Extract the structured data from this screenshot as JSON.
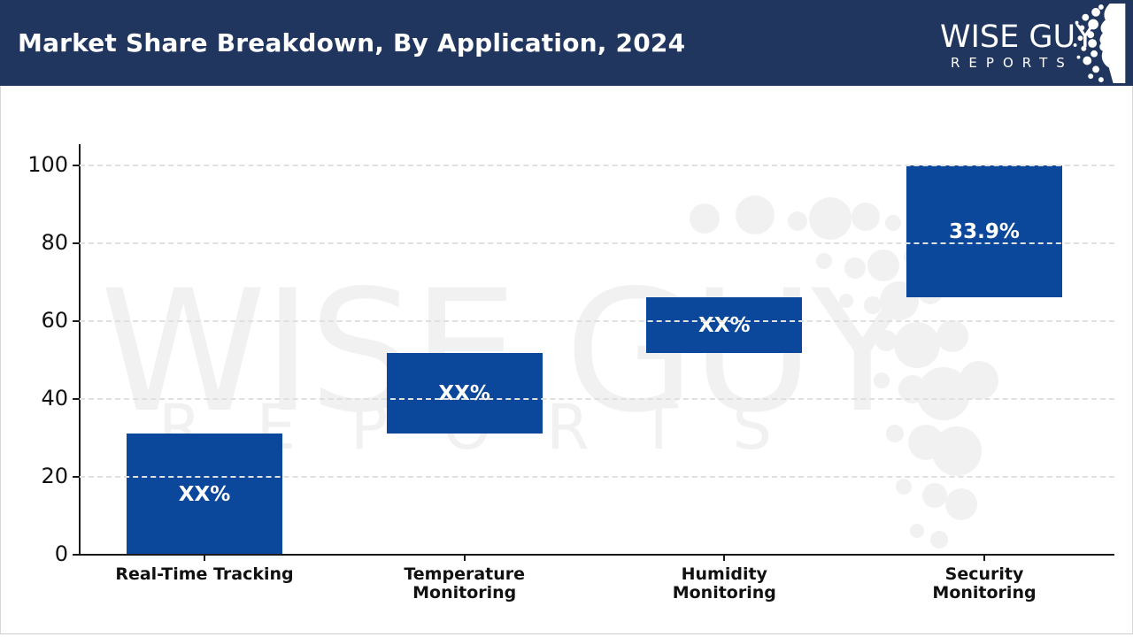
{
  "header": {
    "title": "Market Share Breakdown, By Application, 2024",
    "bg_color": "#20365F",
    "logo": {
      "line1": "WISE GUY",
      "line2": "REPORTS"
    }
  },
  "watermark": {
    "line1": "WISE GUY",
    "line2": "REPORTS"
  },
  "chart_data": {
    "type": "bar",
    "subtype": "waterfall",
    "title": "Market Share Breakdown, By Application, 2024",
    "categories": [
      "Real-Time Tracking",
      "Temperature\nMonitoring",
      "Humidity\nMonitoring",
      "Security\nMonitoring"
    ],
    "series": [
      {
        "name": "Market Share %",
        "segments": [
          {
            "category": "Real-Time Tracking",
            "start": 0,
            "end": 31.1,
            "label": "XX%"
          },
          {
            "category": "Temperature Monitoring",
            "start": 31.1,
            "end": 51.8,
            "label": "XX%"
          },
          {
            "category": "Humidity Monitoring",
            "start": 51.8,
            "end": 66.1,
            "label": "XX%"
          },
          {
            "category": "Security Monitoring",
            "start": 66.1,
            "end": 100,
            "label": "33.9%"
          }
        ]
      }
    ],
    "bar_labels": [
      "XX%",
      "XX%",
      "XX%",
      "33.9%"
    ],
    "ylim": [
      0,
      100
    ],
    "yticks": [
      0,
      20,
      40,
      60,
      80,
      100
    ],
    "xlabel": "",
    "ylabel": "",
    "legend": "none",
    "grid": "horizontal-dashed",
    "bar_color": "#0B489B",
    "axis_color": "#1a1a1a",
    "label_color": "#ffffff"
  }
}
